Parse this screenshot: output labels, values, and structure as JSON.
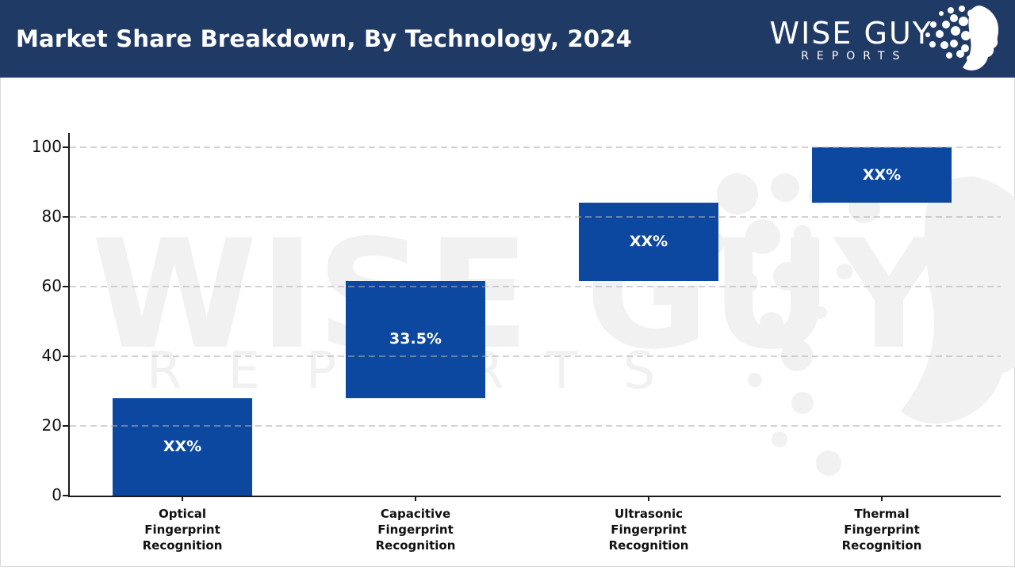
{
  "header": {
    "title": "Market Share Breakdown, By Technology, 2024",
    "logo": {
      "line1": "WISE GUY",
      "line2": "REPORTS"
    }
  },
  "watermark": {
    "line1": "WISE GUY",
    "line2": "REPORTS"
  },
  "colors": {
    "header_bg": "#203a66",
    "bar_blue": "#0c47a0",
    "grid_gray": "#d6d6d6",
    "watermark_gray": "#f1f1f1"
  },
  "chart_data": {
    "type": "bar",
    "variant": "waterfall",
    "title": "Market Share Breakdown, By Technology, 2024",
    "categories": [
      "Optical Fingerprint Recognition",
      "Capacitive Fingerprint Recognition",
      "Ultrasonic Fingerprint Recognition",
      "Thermal Fingerprint Recognition"
    ],
    "segments": [
      {
        "start": 0,
        "end": 28,
        "label": "XX%"
      },
      {
        "start": 28,
        "end": 61.5,
        "label": "33.5%"
      },
      {
        "start": 61.5,
        "end": 84,
        "label": "XX%"
      },
      {
        "start": 84,
        "end": 100,
        "label": "XX%"
      }
    ],
    "yticks": [
      0,
      20,
      40,
      60,
      80,
      100
    ],
    "ylim": [
      0,
      100
    ],
    "xlabel": "",
    "ylabel": "",
    "grid": "horizontal-dashed",
    "legend": "none",
    "bar_color": "#0c47a0",
    "bar_label_color": "#ffffff"
  }
}
